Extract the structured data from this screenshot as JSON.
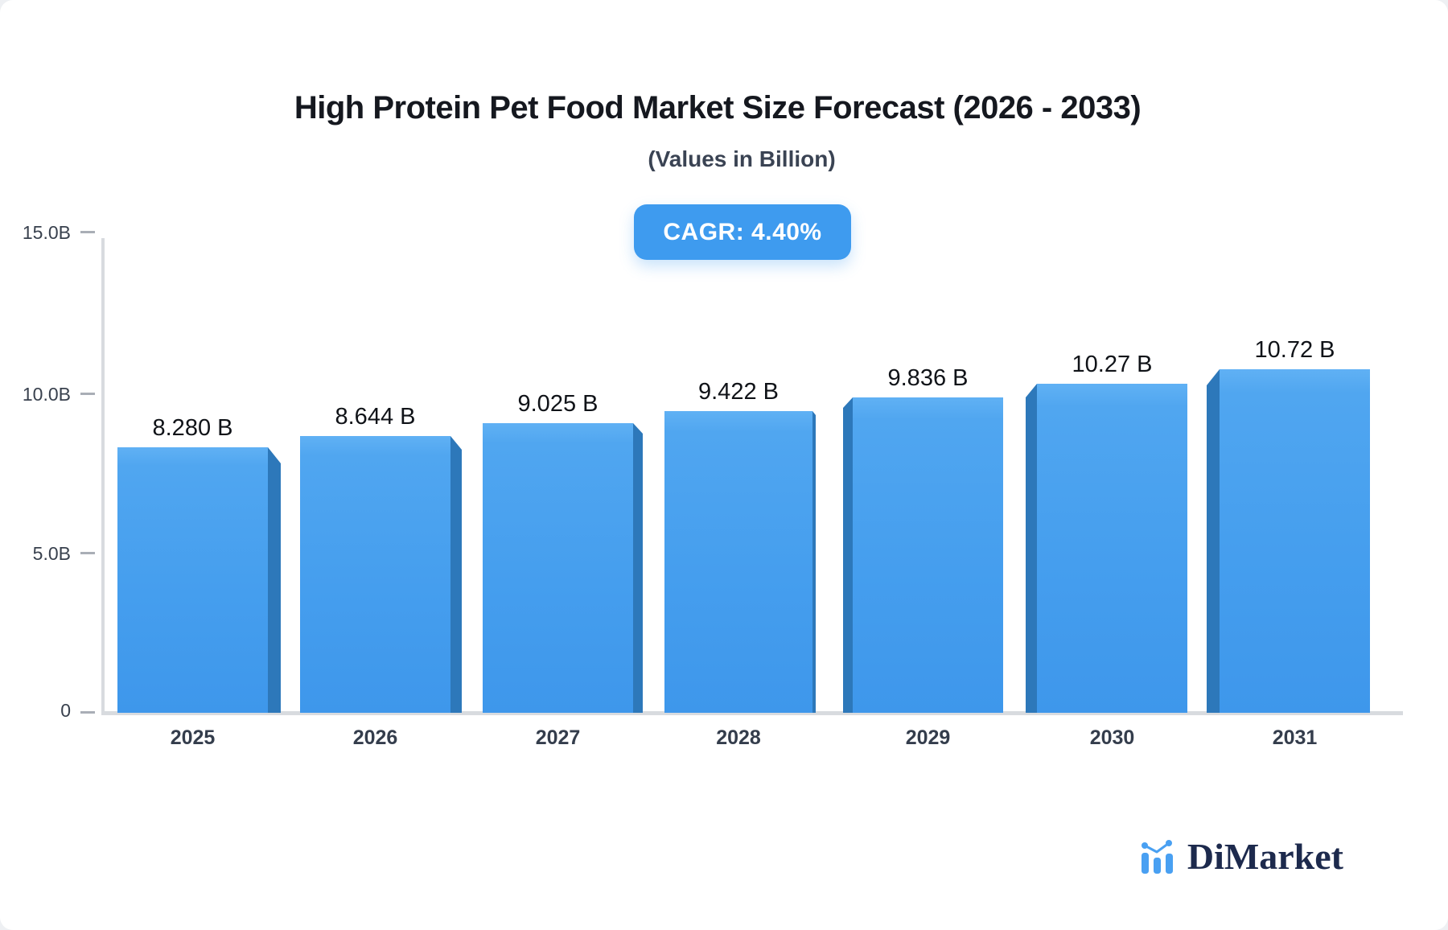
{
  "title": "High Protein Pet Food Market Size Forecast (2026 - 2033)",
  "subtitle": "(Values in Billion)",
  "cagr_badge": "CAGR: 4.40%",
  "brand": {
    "name": "DiMarket",
    "icon": "bar-chart-logo-icon"
  },
  "colors": {
    "bar_face": "#459eee",
    "bar_side": "#2d78ba",
    "badge_bg": "#3e9bef",
    "axis_line": "#d8dbdf",
    "tick_text": "#39414e",
    "value_text": "#101318",
    "brand_navy": "#1d2a4d"
  },
  "chart_data": {
    "type": "bar",
    "title": "High Protein Pet Food Market Size Forecast (2026 - 2033)",
    "subtitle": "(Values in Billion)",
    "categories": [
      "2025",
      "2026",
      "2027",
      "2028",
      "2029",
      "2030",
      "2031"
    ],
    "values": [
      8.28,
      8.644,
      9.025,
      9.422,
      9.836,
      10.27,
      10.72
    ],
    "value_labels": [
      "8.280 B",
      "8.644 B",
      "9.025 B",
      "9.422 B",
      "9.836 B",
      "10.27 B",
      "10.72 B"
    ],
    "xlabel": "",
    "ylabel": "",
    "ylim": [
      0,
      15
    ],
    "ytick_labels": [
      "15.0B",
      "10.0B",
      "5.0B",
      "0"
    ],
    "grid": "off",
    "legend": "none",
    "annotation": "CAGR: 4.40%"
  }
}
